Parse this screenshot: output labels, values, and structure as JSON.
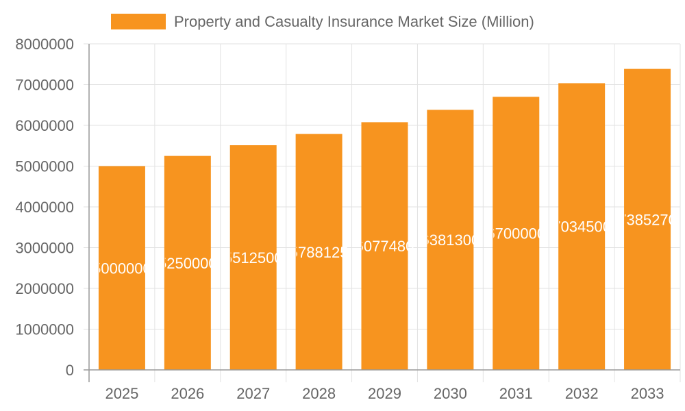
{
  "chart_data": {
    "type": "bar",
    "title": "",
    "xlabel": "",
    "ylabel": "",
    "categories": [
      "2025",
      "2026",
      "2027",
      "2028",
      "2029",
      "2030",
      "2031",
      "2032",
      "2033"
    ],
    "series": [
      {
        "name": "Property and Casualty Insurance Market Size (Million)",
        "values": [
          5000000,
          5250000,
          5512500,
          5788125,
          6077480,
          6381300,
          6700000,
          7034500,
          7385270
        ],
        "color": "#f7941f"
      }
    ],
    "ylim": [
      0,
      8000000
    ],
    "yticks": [
      0,
      1000000,
      2000000,
      3000000,
      4000000,
      5000000,
      6000000,
      7000000,
      8000000
    ],
    "grid": true,
    "legend": "top",
    "data_labels": true,
    "data_label_color": "#ffffff"
  }
}
